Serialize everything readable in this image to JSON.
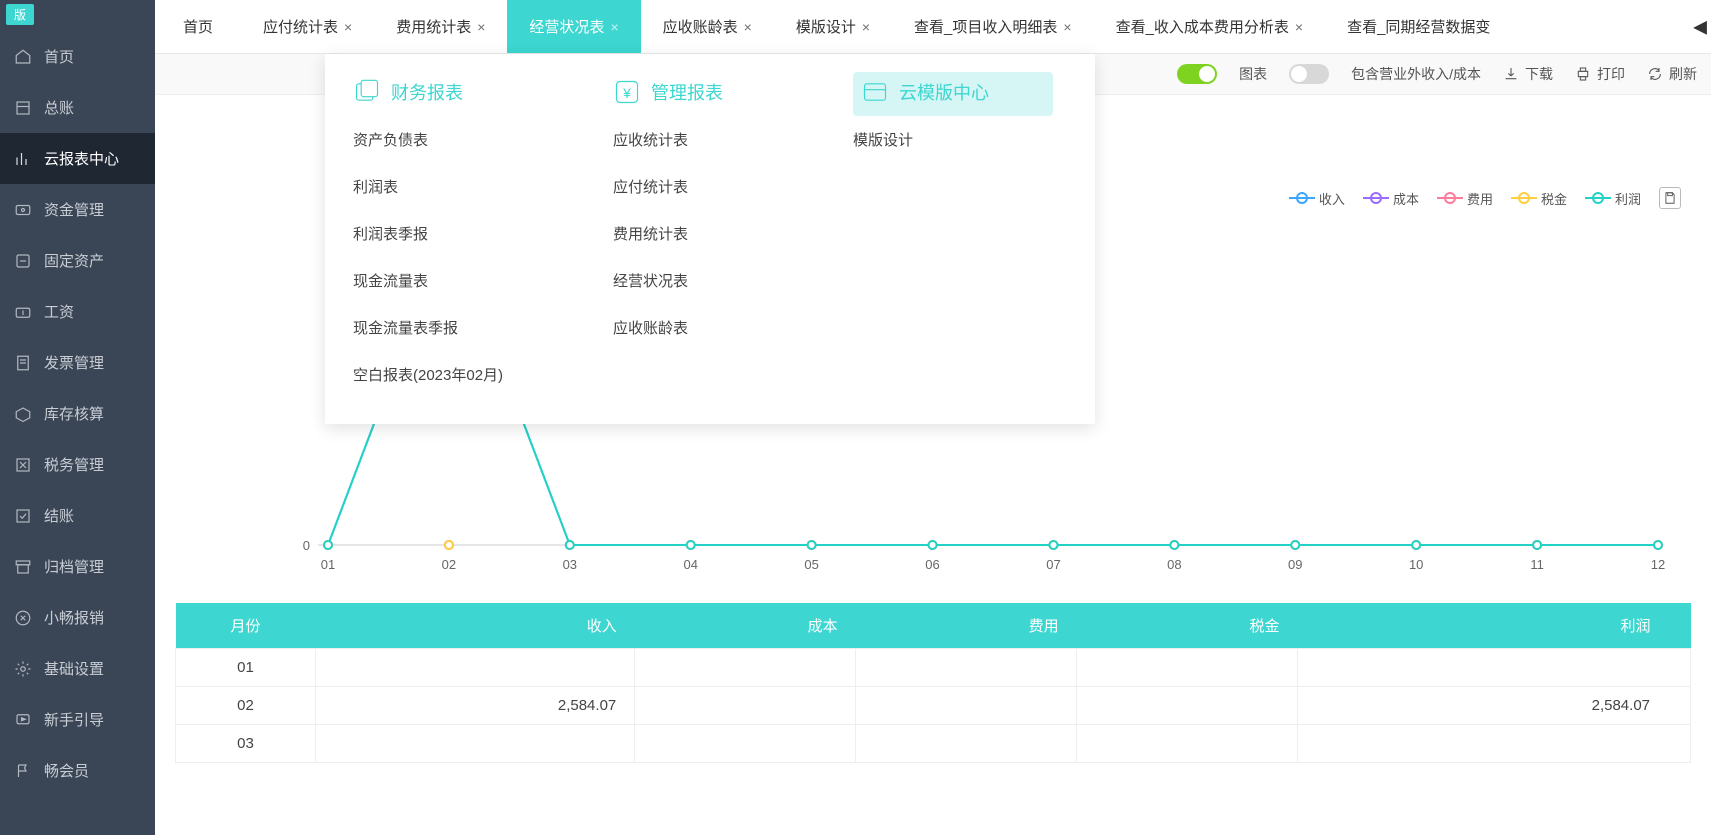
{
  "sidebar": {
    "tag": "版",
    "items": [
      {
        "label": "首页",
        "icon": "home"
      },
      {
        "label": "总账",
        "icon": "ledger"
      },
      {
        "label": "云报表中心",
        "icon": "report",
        "active": true
      },
      {
        "label": "资金管理",
        "icon": "fund"
      },
      {
        "label": "固定资产",
        "icon": "asset"
      },
      {
        "label": "工资",
        "icon": "salary"
      },
      {
        "label": "发票管理",
        "icon": "invoice"
      },
      {
        "label": "库存核算",
        "icon": "stock"
      },
      {
        "label": "税务管理",
        "icon": "tax"
      },
      {
        "label": "结账",
        "icon": "close"
      },
      {
        "label": "归档管理",
        "icon": "archive"
      },
      {
        "label": "小畅报销",
        "icon": "reimburse"
      },
      {
        "label": "基础设置",
        "icon": "setting"
      },
      {
        "label": "新手引导",
        "icon": "guide"
      },
      {
        "label": "畅会员",
        "icon": "vip"
      }
    ]
  },
  "tabs": [
    {
      "label": "首页",
      "closable": false
    },
    {
      "label": "应付统计表",
      "closable": true
    },
    {
      "label": "费用统计表",
      "closable": true
    },
    {
      "label": "经营状况表",
      "closable": true,
      "active": true
    },
    {
      "label": "应收账龄表",
      "closable": true
    },
    {
      "label": "模版设计",
      "closable": true
    },
    {
      "label": "查看_项目收入明细表",
      "closable": true
    },
    {
      "label": "查看_收入成本费用分析表",
      "closable": true
    },
    {
      "label": "查看_同期经营数据变",
      "closable": false,
      "truncated": true
    }
  ],
  "toolbar": {
    "chart_toggle_label": "图表",
    "extra_toggle_label": "包含营业外收入/成本",
    "download": "下载",
    "print": "打印",
    "refresh": "刷新"
  },
  "mega": {
    "col1": {
      "title": "财务报表",
      "items": [
        "资产负债表",
        "利润表",
        "利润表季报",
        "现金流量表",
        "现金流量表季报",
        "空白报表(2023年02月)"
      ]
    },
    "col2": {
      "title": "管理报表",
      "items": [
        "应收统计表",
        "应付统计表",
        "费用统计表",
        "经营状况表",
        "应收账龄表"
      ]
    },
    "col3": {
      "title": "云模版中心",
      "items": [
        "模版设计"
      ]
    }
  },
  "chart": {
    "type": "line",
    "x_labels": [
      "01",
      "02",
      "03",
      "04",
      "05",
      "06",
      "07",
      "08",
      "09",
      "10",
      "11",
      "12"
    ],
    "y_axis_zero_label": "0",
    "ylim": [
      0,
      3000
    ],
    "background_color": "#ffffff",
    "axis_color": "#cccccc",
    "label_color": "#666666",
    "label_fontsize": 13,
    "marker_radius": 4,
    "line_width": 2,
    "series": [
      {
        "name": "收入",
        "color": "#3aa6ff",
        "values": [
          0,
          2584.07,
          0,
          0,
          0,
          0,
          0,
          0,
          0,
          0,
          0,
          0
        ]
      },
      {
        "name": "成本",
        "color": "#9b6bff",
        "values": [
          0,
          0,
          0,
          0,
          0,
          0,
          0,
          0,
          0,
          0,
          0,
          0
        ]
      },
      {
        "name": "费用",
        "color": "#ff7b9c",
        "values": [
          0,
          0,
          0,
          0,
          0,
          0,
          0,
          0,
          0,
          0,
          0,
          0
        ]
      },
      {
        "name": "税金",
        "color": "#ffcf3f",
        "values": [
          0,
          0,
          0,
          0,
          0,
          0,
          0,
          0,
          0,
          0,
          0,
          0
        ]
      },
      {
        "name": "利润",
        "color": "#22d3c5",
        "values": [
          0,
          2584.07,
          0,
          0,
          0,
          0,
          0,
          0,
          0,
          0,
          0,
          0
        ]
      }
    ],
    "legend_labels": [
      "收入",
      "成本",
      "费用",
      "税金",
      "利润"
    ],
    "legend_colors": [
      "#3aa6ff",
      "#9b6bff",
      "#ff7b9c",
      "#ffcf3f",
      "#22d3c5"
    ]
  },
  "table": {
    "columns": [
      "月份",
      "收入",
      "成本",
      "费用",
      "税金",
      "利润"
    ],
    "rows": [
      {
        "month": "01",
        "income": "",
        "cost": "",
        "fee": "",
        "tax": "",
        "profit": ""
      },
      {
        "month": "02",
        "income": "2,584.07",
        "cost": "",
        "fee": "",
        "tax": "",
        "profit": "2,584.07"
      },
      {
        "month": "03",
        "income": "",
        "cost": "",
        "fee": "",
        "tax": "",
        "profit": ""
      }
    ],
    "header_bg": "#3dd6d0",
    "header_fg": "#ffffff",
    "border_color": "#eeeeee"
  }
}
